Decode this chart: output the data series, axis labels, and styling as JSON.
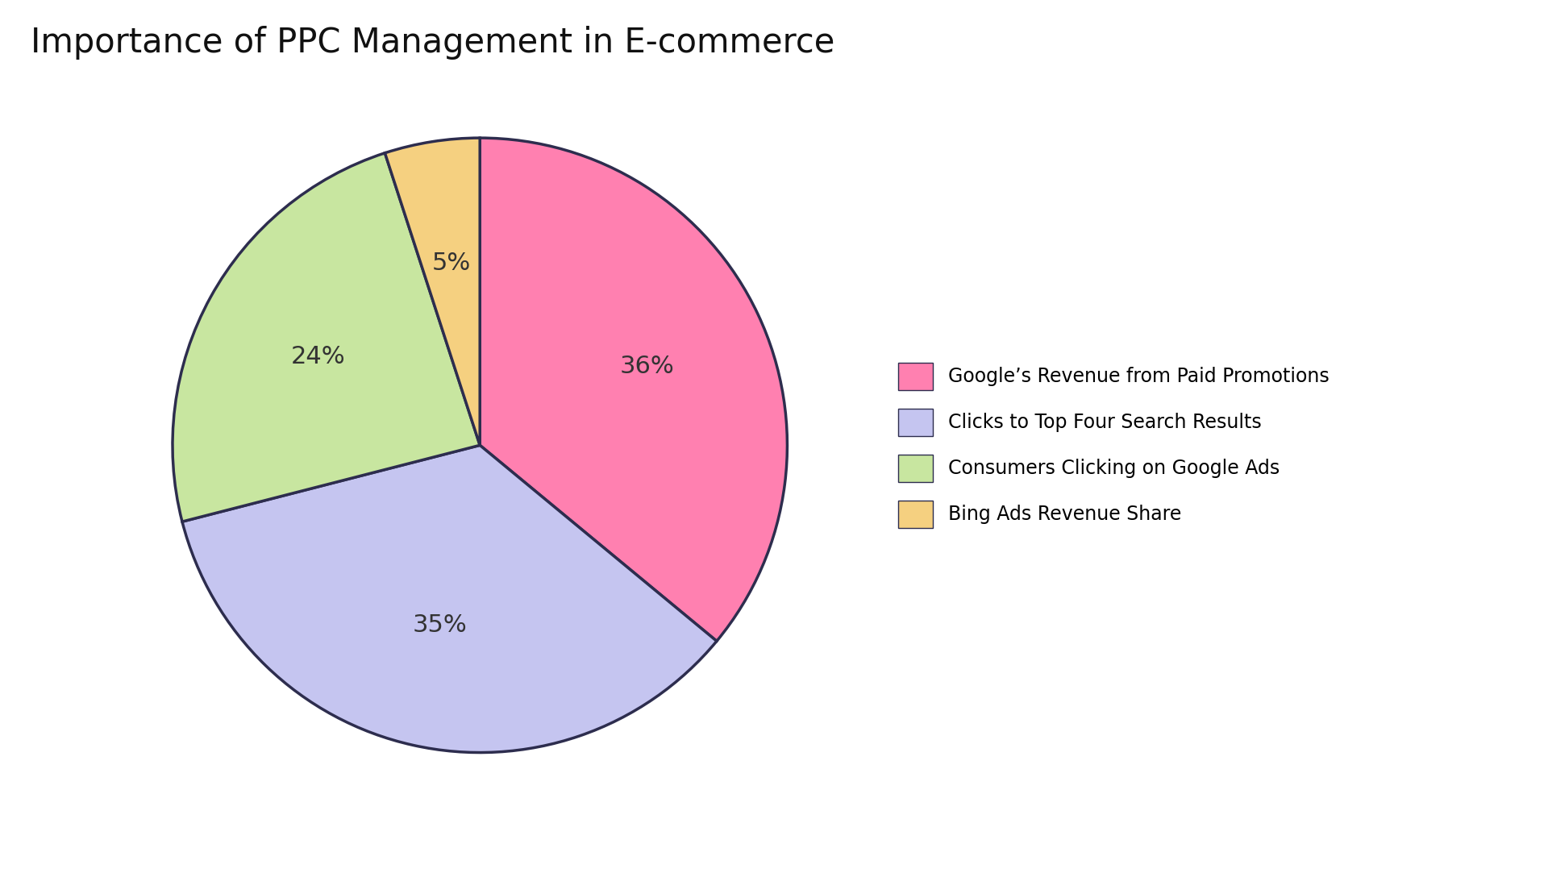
{
  "title": "Importance of PPC Management in E-commerce",
  "slices": [
    36,
    35,
    24,
    5
  ],
  "labels": [
    "Google’s Revenue from Paid Promotions",
    "Clicks to Top Four Search Results",
    "Consumers Clicking on Google Ads",
    "Bing Ads Revenue Share"
  ],
  "colors": [
    "#FF80B0",
    "#C5C5F0",
    "#C8E6A0",
    "#F5D080"
  ],
  "pct_labels": [
    "36%",
    "35%",
    "24%",
    "5%"
  ],
  "edge_color": "#2D2D4E",
  "edge_width": 2.5,
  "start_angle": 90,
  "title_fontsize": 30,
  "pct_fontsize": 22,
  "legend_fontsize": 17,
  "background_color": "#FFFFFF"
}
